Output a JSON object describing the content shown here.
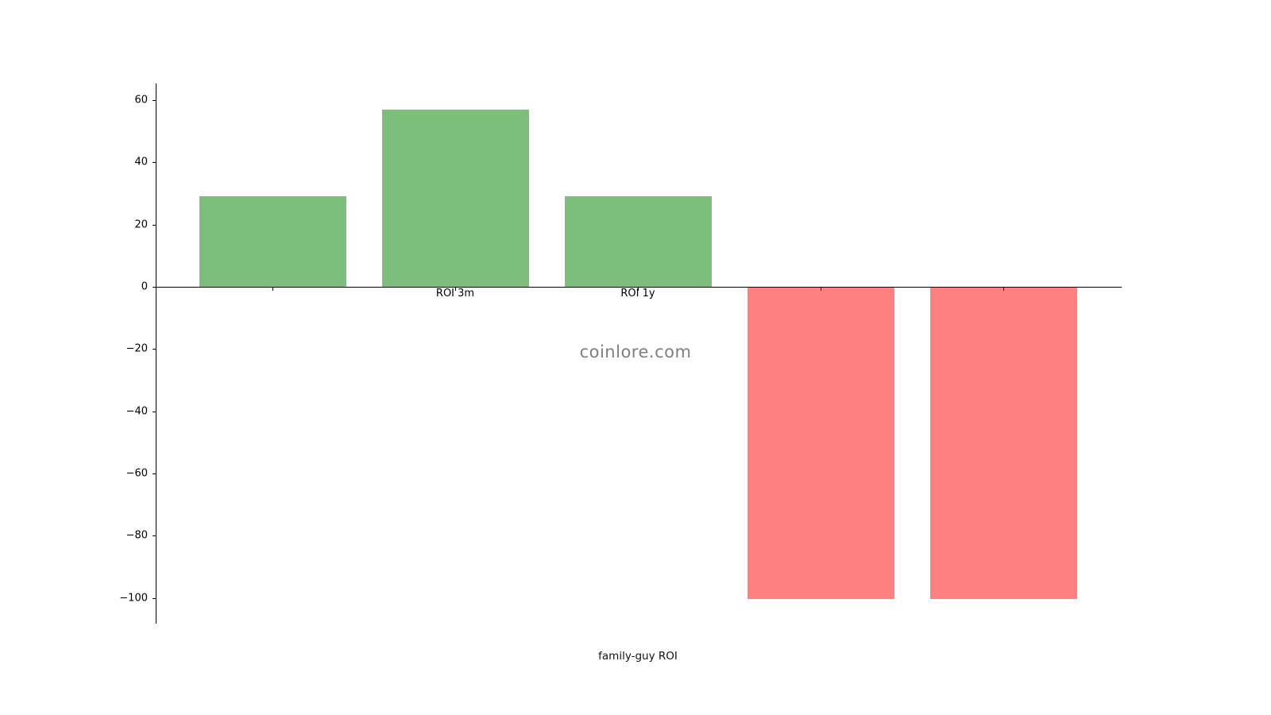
{
  "page": {
    "watermark": "coinlore.com",
    "footer_title": "family-guy ROI"
  },
  "chart_data": {
    "type": "bar",
    "title": "family-guy ROI",
    "watermark": "coinlore.com",
    "categories": [
      "",
      "ROI 3m",
      "ROI 1y",
      "",
      ""
    ],
    "values": [
      29,
      57,
      29,
      -100,
      -100
    ],
    "series": [
      {
        "name": "ROI",
        "values": [
          29,
          57,
          29,
          -100,
          -100
        ]
      }
    ],
    "xlabel": "",
    "ylabel": "",
    "yticks": [
      60,
      40,
      20,
      0,
      -20,
      -40,
      -60,
      -80,
      -100
    ],
    "ylim": [
      -108,
      65
    ],
    "grid": false,
    "legend_position": "none",
    "colors": {
      "positive_bar": "#7dbe7d",
      "negative_bar": "#ff8080",
      "axis": "#000000",
      "watermark_text": "#7f7f7f",
      "title_text": "#111111",
      "background": "#ffffff"
    }
  }
}
